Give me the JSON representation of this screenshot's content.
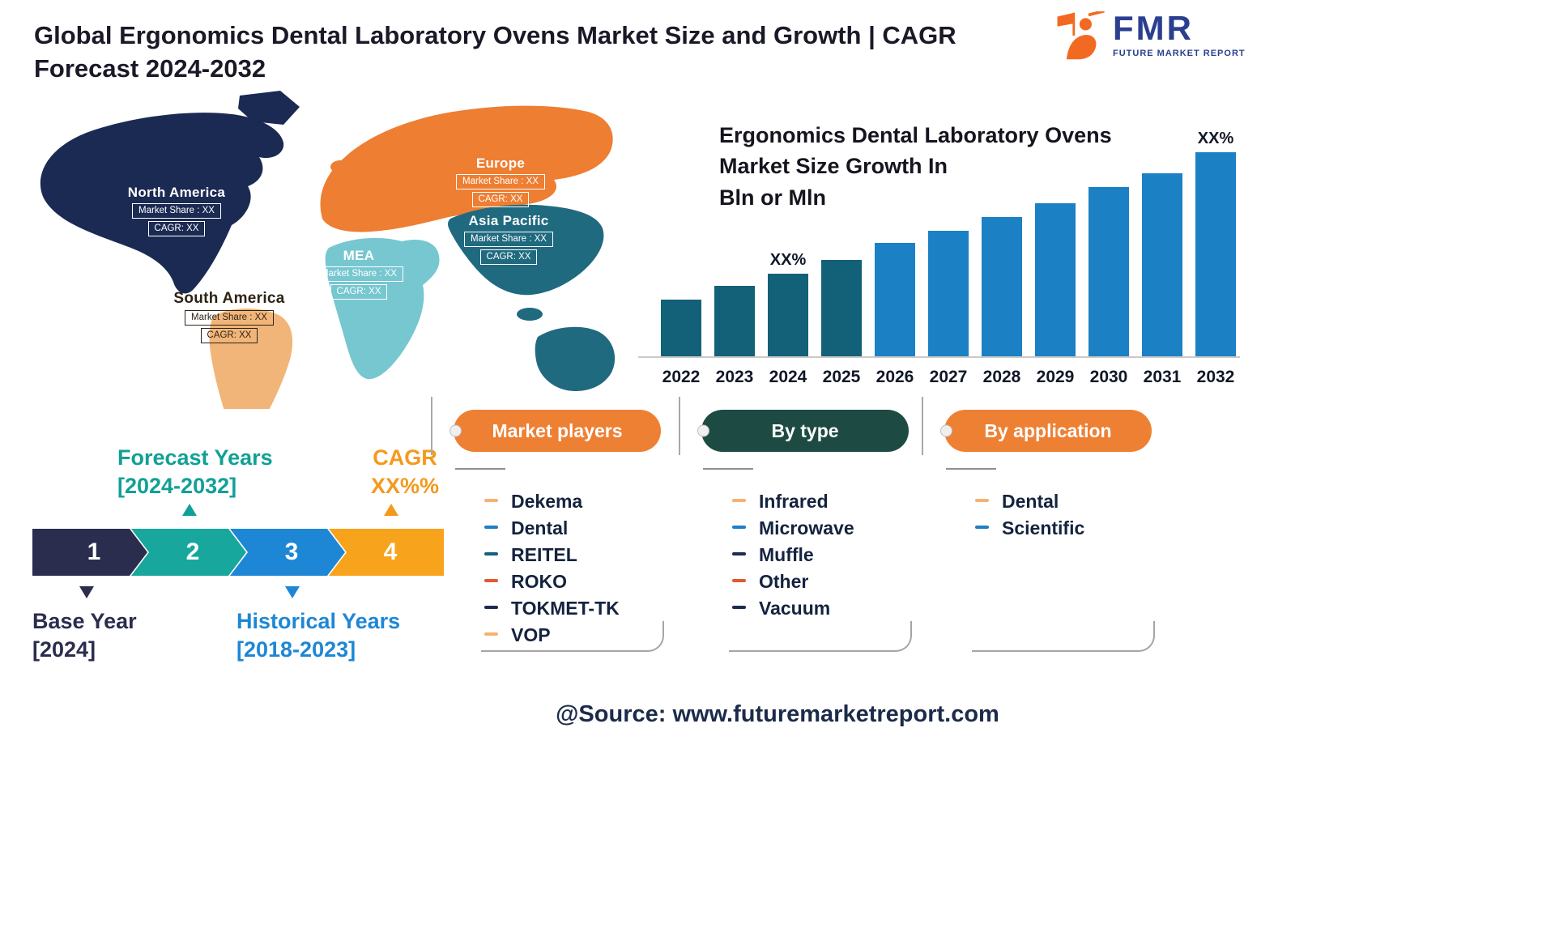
{
  "header": {
    "title": "Global Ergonomics Dental Laboratory Ovens Market Size and Growth | CAGR Forecast 2024-2032"
  },
  "logo": {
    "abbr": "FMR",
    "tagline": "FUTURE MARKET REPORT"
  },
  "map": {
    "regions": [
      {
        "id": "north-america",
        "name": "North America",
        "share": "Market Share : XX",
        "cagr": "CAGR: XX",
        "color": "#1b2a52",
        "text": "#ffffff"
      },
      {
        "id": "south-america",
        "name": "South America",
        "share": "Market Share : XX",
        "cagr": "CAGR: XX",
        "color": "#f2b579",
        "text": "#2d2416"
      },
      {
        "id": "europe",
        "name": "Europe",
        "share": "Market Share : XX",
        "cagr": "CAGR: XX",
        "color": "#ee7e32",
        "text": "#ffffff"
      },
      {
        "id": "mea",
        "name": "MEA",
        "share": "Market Share : XX",
        "cagr": "CAGR: XX",
        "color": "#76c7d0",
        "text": "#ffffff"
      },
      {
        "id": "asia-pacific",
        "name": "Asia Pacific",
        "share": "Market Share : XX",
        "cagr": "CAGR: XX",
        "color": "#206a80",
        "text": "#ffffff"
      }
    ]
  },
  "chart_data": {
    "type": "bar",
    "title": "Ergonomics Dental Laboratory Ovens\nMarket Size Growth In\nBln or Mln",
    "categories": [
      "2022",
      "2023",
      "2024",
      "2025",
      "2026",
      "2027",
      "2028",
      "2029",
      "2030",
      "2031",
      "2032"
    ],
    "values": [
      70,
      87,
      102,
      119,
      140,
      155,
      172,
      189,
      209,
      226,
      252
    ],
    "values_note": "relative magnitudes estimated from bar heights; no numeric axis shown",
    "bar_colors": [
      "#136079",
      "#136079",
      "#136079",
      "#136079",
      "#1c80c4",
      "#1c80c4",
      "#1c80c4",
      "#1c80c4",
      "#1c80c4",
      "#1c80c4",
      "#1c80c4"
    ],
    "annotations": [
      {
        "category": "2024",
        "label": "XX%"
      },
      {
        "category": "2032",
        "label": "XX%"
      }
    ],
    "xlabel": "",
    "ylabel": "",
    "ylim": [
      0,
      260
    ],
    "grid": false,
    "legend": false
  },
  "timeline": {
    "segments": [
      {
        "number": "1",
        "color": "#2b2d4e"
      },
      {
        "number": "2",
        "color": "#17a79c"
      },
      {
        "number": "3",
        "color": "#1e87d5"
      },
      {
        "number": "4",
        "color": "#f8a31c"
      }
    ],
    "callouts": {
      "forecast": {
        "title": "Forecast Years",
        "range": "[2024-2032]",
        "color": "#12a096"
      },
      "cagr": {
        "title": "CAGR",
        "range": "XX%%",
        "color": "#f5991c"
      },
      "base": {
        "title": "Base Year",
        "range": "[2024]",
        "color": "#2b2d4e"
      },
      "historical": {
        "title": "Historical Years",
        "range": "[2018-2023]",
        "color": "#1e87d5"
      }
    }
  },
  "panels": [
    {
      "title": "Market players",
      "header_color": "#ee8034",
      "items": [
        {
          "label": "Dekema",
          "tick": "#f6b26f"
        },
        {
          "label": "Dental",
          "tick": "#1e7fc2"
        },
        {
          "label": "REITEL",
          "tick": "#14607a"
        },
        {
          "label": "ROKO",
          "tick": "#e2592e"
        },
        {
          "label": "TOKMET-TK",
          "tick": "#1d2b4f"
        },
        {
          "label": "VOP",
          "tick": "#f6b26f"
        }
      ]
    },
    {
      "title": "By type",
      "header_color": "#1d4b43",
      "items": [
        {
          "label": "Infrared",
          "tick": "#f6b26f"
        },
        {
          "label": "Microwave",
          "tick": "#1e7fc2"
        },
        {
          "label": "Muffle",
          "tick": "#1d2b4f"
        },
        {
          "label": "Other",
          "tick": "#e2592e"
        },
        {
          "label": "Vacuum",
          "tick": "#1d2b4f"
        }
      ]
    },
    {
      "title": "By application",
      "header_color": "#ee8034",
      "items": [
        {
          "label": "Dental",
          "tick": "#f6b26f"
        },
        {
          "label": "Scientific",
          "tick": "#1e7fc2"
        }
      ]
    }
  ],
  "source": "@Source: www.futuremarketreport.com"
}
